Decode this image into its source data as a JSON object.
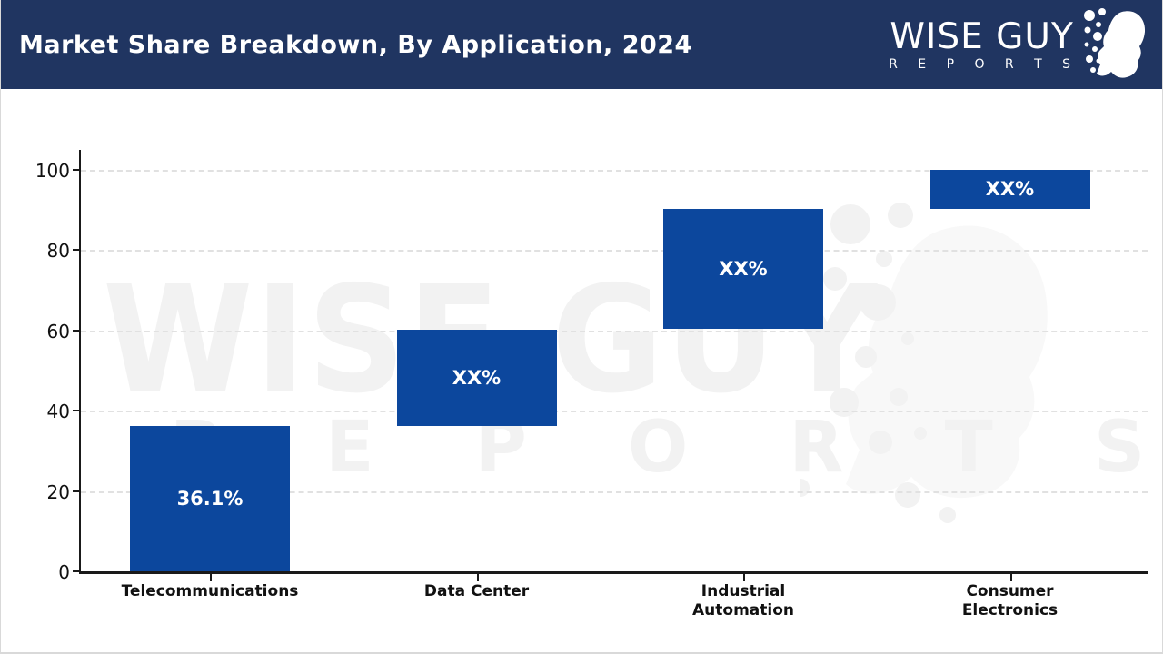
{
  "header": {
    "title": "Market Share Breakdown, By Application, 2024",
    "logo": {
      "line1": "WISE GUY",
      "line2": "R E P O R T S"
    }
  },
  "watermark": {
    "line1": "WISE GUY",
    "line2": "R E P O R T S"
  },
  "colors": {
    "header_bg": "#203561",
    "bar": "#0c479d",
    "grid": "#e1e1e1",
    "axis": "#1a1a1a",
    "watermark": "#f2f2f2",
    "label_on_bar": "#ffffff"
  },
  "chart_data": {
    "type": "bar",
    "subtype": "stacked-breakdown-waterfall",
    "title": "Market Share Breakdown, By Application, 2024",
    "categories": [
      "Telecommunications",
      "Data Center",
      "Industrial\nAutomation",
      "Consumer\nElectronics"
    ],
    "bars": [
      {
        "category": "Telecommunications",
        "label": "36.1%",
        "start": 0,
        "end": 36.1
      },
      {
        "category": "Data Center",
        "label": "XX%",
        "start": 36.1,
        "end": 60.2
      },
      {
        "category": "Industrial Automation",
        "label": "XX%",
        "start": 60.5,
        "end": 90.3
      },
      {
        "category": "Consumer Electronics",
        "label": "XX%",
        "start": 90.3,
        "end": 100
      }
    ],
    "yticks": [
      0,
      20,
      40,
      60,
      80,
      100
    ],
    "ylim": [
      0,
      100
    ],
    "xlabel": "",
    "ylabel": "",
    "grid": "horizontal-dashed",
    "legend": "none"
  }
}
